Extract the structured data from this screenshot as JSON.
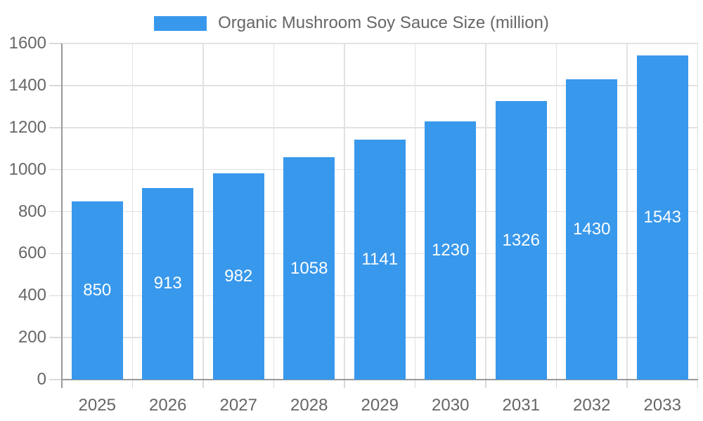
{
  "chart_data": {
    "type": "bar",
    "title": "Organic Mushroom Soy Sauce Size (million)",
    "series_name": "Organic Mushroom Soy Sauce Size (million)",
    "categories": [
      "2025",
      "2026",
      "2027",
      "2028",
      "2029",
      "2030",
      "2031",
      "2032",
      "2033"
    ],
    "values": [
      850,
      913,
      982,
      1058,
      1141,
      1230,
      1326,
      1430,
      1543
    ],
    "value_labels": [
      "850",
      "913",
      "982",
      "1058",
      "1141",
      "1230",
      "1326",
      "1430",
      "1543"
    ],
    "xlabel": "",
    "ylabel": "",
    "ylim": [
      0,
      1600
    ],
    "ytick_step": 200,
    "yticks": [
      0,
      200,
      400,
      600,
      800,
      1000,
      1200,
      1400,
      1600
    ],
    "grid": true,
    "legend_position": "top",
    "colors": {
      "bar": "#3898EC",
      "axis_line": "#999999",
      "gridline": "#E2E2E2",
      "tick": "#D9D9D9",
      "axis_text": "#666666",
      "value_text": "#FFFFFF",
      "background": "#FFFFFF"
    }
  }
}
